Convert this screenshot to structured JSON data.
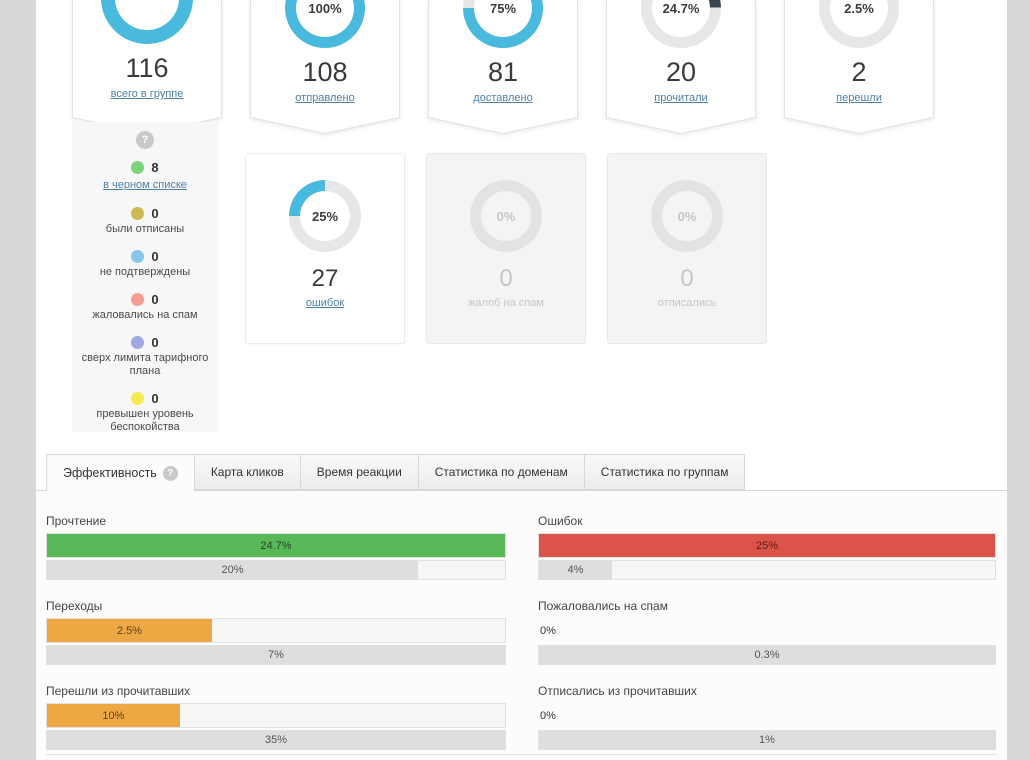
{
  "colors": {
    "blue": "#49b9de",
    "dark": "#39454e",
    "green": "#57b857",
    "red": "#dc5449",
    "orange": "#eda743",
    "link": "#4d82a6"
  },
  "top_cards": [
    {
      "percent": "",
      "value": "116",
      "label": "всего в группе",
      "fill": 100,
      "color": "#49b9de",
      "track": "#e7e7e7",
      "rotate": 0
    },
    {
      "percent": "100%",
      "value": "108",
      "label": "отправлено",
      "fill": 100,
      "color": "#49b9de",
      "track": "#e7e7e7",
      "rotate": 0
    },
    {
      "percent": "75%",
      "value": "81",
      "label": "доставлено",
      "fill": 75,
      "color": "#49b9de",
      "track": "#e7e7e7",
      "rotate": 0
    },
    {
      "percent": "24.7%",
      "value": "20",
      "label": "прочитали",
      "fill": 24.7,
      "color": "#39454e",
      "track": "#e7e7e7",
      "rotate": 0
    },
    {
      "percent": "2.5%",
      "value": "2",
      "label": "перешли",
      "fill": 2.5,
      "color": "#39454e",
      "track": "#e7e7e7",
      "rotate": 0
    }
  ],
  "legend": {
    "help": "?",
    "items": [
      {
        "dot": "#7bd47b",
        "value": "8",
        "label": "в черном списке",
        "link": true
      },
      {
        "dot": "#cdb952",
        "value": "0",
        "label": "были отписаны"
      },
      {
        "dot": "#86c7ea",
        "value": "0",
        "label": "не подтверждены"
      },
      {
        "dot": "#f59c94",
        "value": "0",
        "label": "жаловались на спам"
      },
      {
        "dot": "#9fa8e0",
        "value": "0",
        "label": "сверх лимита тарифного плана"
      },
      {
        "dot": "#f4ea51",
        "value": "0",
        "label": "превышен уровень беспокойства"
      }
    ]
  },
  "mid_cards": [
    {
      "percent": "25%",
      "value": "27",
      "label": "ошибок",
      "fill": 25,
      "color": "#49b9de",
      "track": "#e7e7e7",
      "rotate": 270
    },
    {
      "percent": "0%",
      "value": "0",
      "label": "жалоб на спам",
      "fill": 0,
      "color": "#e3e3e3",
      "track": "#e3e3e3",
      "rotate": 0
    },
    {
      "percent": "0%",
      "value": "0",
      "label": "отписались",
      "fill": 0,
      "color": "#e3e3e3",
      "track": "#e3e3e3",
      "rotate": 0
    }
  ],
  "tabs": [
    {
      "label": "Эффективность",
      "active": true,
      "help": "?"
    },
    {
      "label": "Карта кликов"
    },
    {
      "label": "Время реакции"
    },
    {
      "label": "Статистика по доменам"
    },
    {
      "label": "Статистика по группам"
    }
  ],
  "effectiveness": {
    "left": [
      {
        "title": "Прочтение",
        "value_label": "24.7%",
        "value_pct": 100,
        "value_color": "#57b857",
        "avg_label": "20%",
        "avg_pct": 81
      },
      {
        "title": "Переходы",
        "value_label": "2.5%",
        "value_pct": 36,
        "value_color": "#eda743",
        "avg_label": "7%",
        "avg_pct": 100
      },
      {
        "title": "Перешли из прочитавших",
        "value_label": "10%",
        "value_pct": 29,
        "value_color": "#eda743",
        "avg_label": "35%",
        "avg_pct": 100
      }
    ],
    "right": [
      {
        "title": "Ошибок",
        "value_label": "25%",
        "value_pct": 100,
        "value_color": "#dc5449",
        "avg_label": "4%",
        "avg_pct": 16
      },
      {
        "title": "Пожаловались на спам",
        "value_label": "0%",
        "value_pct": 0,
        "value_color": "",
        "avg_label": "0.3%",
        "avg_pct": 100
      },
      {
        "title": "Отписались из прочитавших",
        "value_label": "0%",
        "value_pct": 0,
        "value_color": "",
        "avg_label": "1%",
        "avg_pct": 100
      }
    ]
  }
}
